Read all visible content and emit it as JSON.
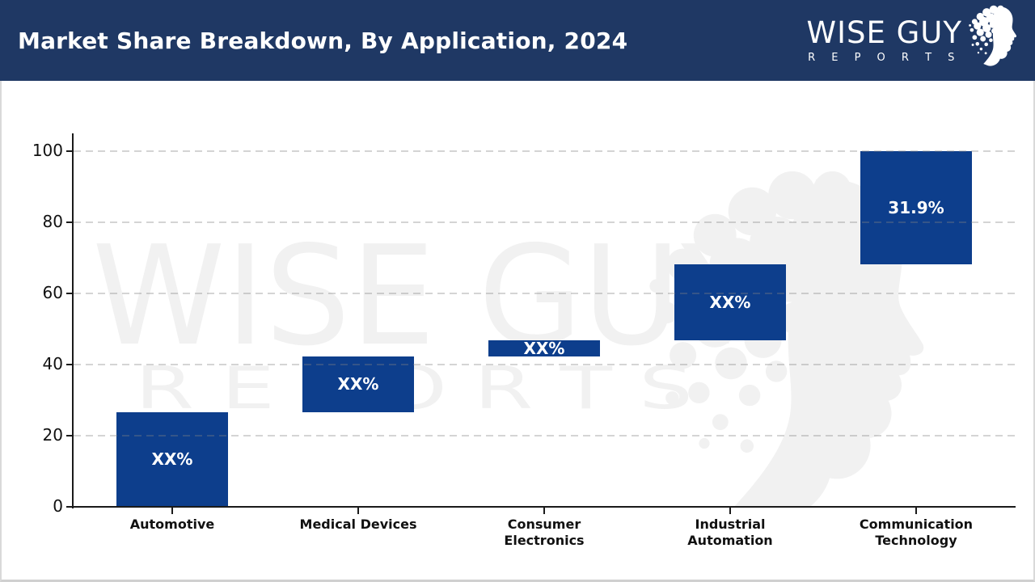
{
  "header": {
    "title": "Market Share Breakdown, By Application, 2024",
    "logo": {
      "name": "WISE GUY",
      "tagline": "R E P O R T S"
    }
  },
  "watermark": {
    "name": "WISE GUY",
    "tagline": "R E P O R T S"
  },
  "chart_data": {
    "type": "bar",
    "subtype": "waterfall",
    "title": "Market Share Breakdown, By Application, 2024",
    "categories": [
      "Automotive",
      "Medical Devices",
      "Consumer Electronics",
      "Industrial Automation",
      "Communication Technology"
    ],
    "segments": [
      {
        "category": "Automotive",
        "category_label": "Automotive",
        "start": 0,
        "end": 26.6,
        "label": "XX%"
      },
      {
        "category": "Medical Devices",
        "category_label": "Medical Devices",
        "start": 26.6,
        "end": 42.3,
        "label": "XX%"
      },
      {
        "category": "Consumer Electronics",
        "category_label": "Consumer\nElectronics",
        "start": 42.3,
        "end": 46.9,
        "label": "XX%"
      },
      {
        "category": "Industrial Automation",
        "category_label": "Industrial\nAutomation",
        "start": 46.9,
        "end": 68.1,
        "label": "XX%"
      },
      {
        "category": "Communication Technology",
        "category_label": "Communication\nTechnology",
        "start": 68.1,
        "end": 100,
        "label": "31.9%"
      }
    ],
    "yticks": [
      0,
      20,
      40,
      60,
      80,
      100
    ],
    "ylim": [
      0,
      105
    ],
    "xlabel": "",
    "ylabel": "",
    "grid": "horizontal-dashed",
    "legend": "none",
    "bar_color": "#0d3e8c",
    "header_color": "#1F3864",
    "label_color": "#ffffff"
  }
}
